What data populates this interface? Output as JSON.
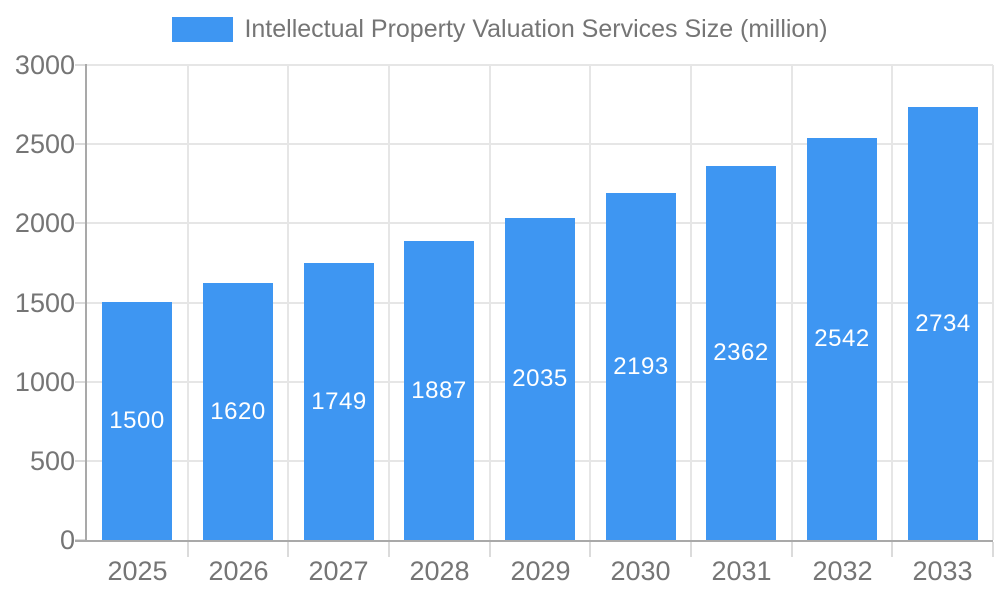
{
  "chart_data": {
    "type": "bar",
    "title": "Intellectual Property Valuation Services Size (million)",
    "legend_position": "top",
    "categories": [
      "2025",
      "2026",
      "2027",
      "2028",
      "2029",
      "2030",
      "2031",
      "2032",
      "2033"
    ],
    "values": [
      1500,
      1620,
      1749,
      1887,
      2035,
      2193,
      2362,
      2542,
      2734
    ],
    "xlabel": "",
    "ylabel": "",
    "ylim": [
      0,
      3000
    ],
    "yticks": [
      0,
      500,
      1000,
      1500,
      2000,
      2500,
      3000
    ],
    "grid": true,
    "value_label_position": "inside-center",
    "colors": {
      "bar": "#3E96F2",
      "value_label": "#FFFFFF",
      "axis_text": "#757575",
      "gridline": "#E6E6E6",
      "axis_line": "#A9A9A9"
    }
  }
}
